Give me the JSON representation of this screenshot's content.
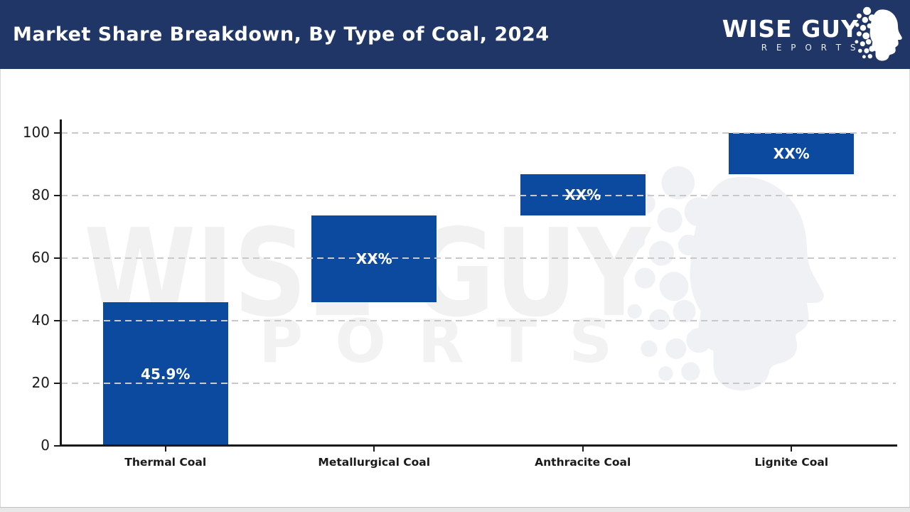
{
  "header": {
    "title": "Market Share Breakdown, By Type of Coal, 2024",
    "logo": {
      "line1": "WISE GUY",
      "line2": "R E P O R T S"
    }
  },
  "watermark": {
    "line1": "WISE GUY",
    "line2": "R E P O R T S"
  },
  "chart_data": {
    "type": "bar",
    "subtype": "waterfall",
    "title": "Market Share Breakdown, By Type of Coal, 2024",
    "xlabel": "",
    "ylabel": "",
    "ylim": [
      0,
      100
    ],
    "yticks": [
      0,
      20,
      40,
      60,
      80,
      100
    ],
    "grid": "horizontal-dashed",
    "legend": "none",
    "bar_color": "#0b4a9e",
    "categories": [
      "Thermal Coal",
      "Metallurgical Coal",
      "Anthracite Coal",
      "Lignite Coal"
    ],
    "segments": [
      {
        "category": "Thermal Coal",
        "start": 0,
        "end": 45.9,
        "label": "45.9%"
      },
      {
        "category": "Metallurgical Coal",
        "start": 45.9,
        "end": 73.5,
        "label": "XX%"
      },
      {
        "category": "Anthracite Coal",
        "start": 73.5,
        "end": 86.9,
        "label": "XX%"
      },
      {
        "category": "Lignite Coal",
        "start": 86.9,
        "end": 100,
        "label": "XX%"
      }
    ]
  },
  "colors": {
    "header_bg": "#1f3666",
    "bar": "#0b4a9e",
    "grid": "#c9c9c9",
    "axis": "#1a1a1a",
    "watermark_text": "#f1f1f1"
  }
}
